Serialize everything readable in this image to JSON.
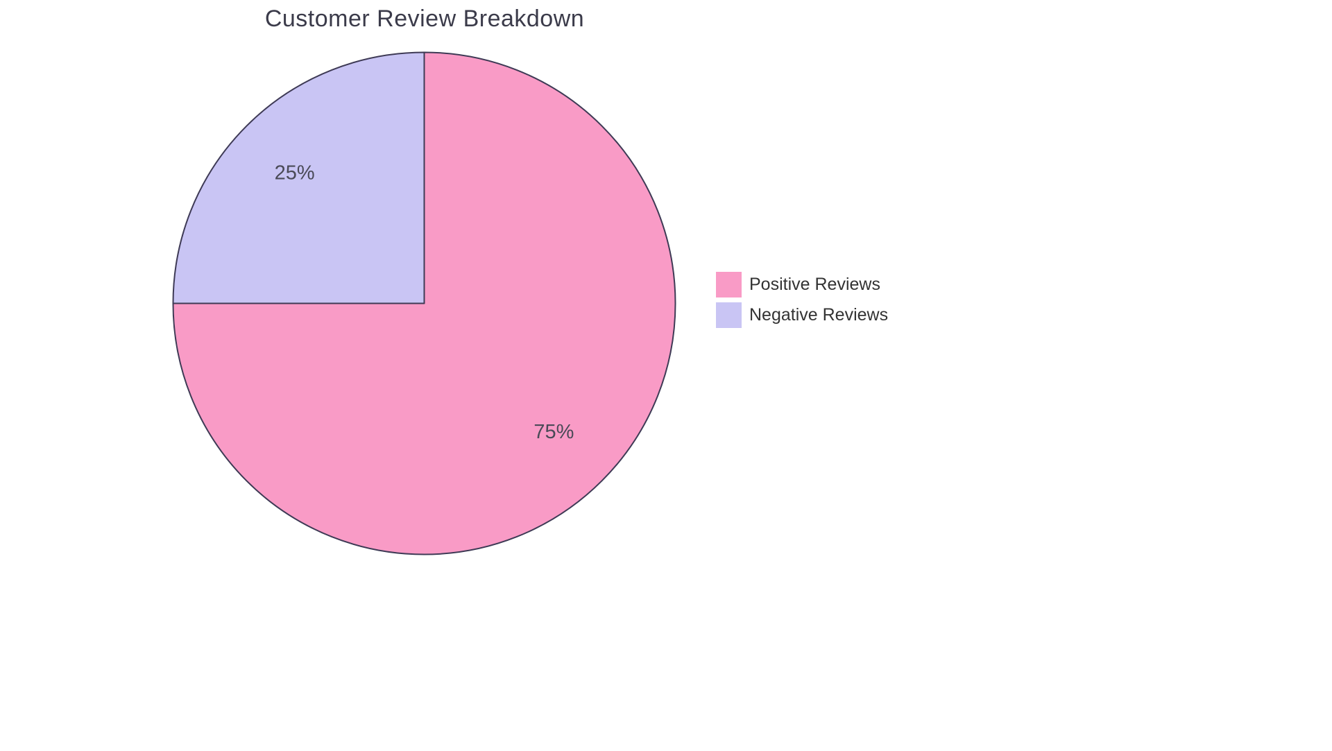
{
  "chart_data": {
    "type": "pie",
    "title": "Customer Review Breakdown",
    "labels": [
      "Positive Reviews",
      "Negative Reviews"
    ],
    "values": [
      75,
      25
    ],
    "slice_labels": [
      "75%",
      "25%"
    ],
    "colors": [
      "#F99BC6",
      "#C9C5F4"
    ],
    "stroke_color": "#3E3A55",
    "stroke_width": 2,
    "start_angle_deg": -90,
    "direction": "clockwise",
    "legend_position": "right",
    "title_color": "#3b3b4a",
    "slice_label_color": "#4a4a57",
    "legend_text_color": "#333333"
  }
}
